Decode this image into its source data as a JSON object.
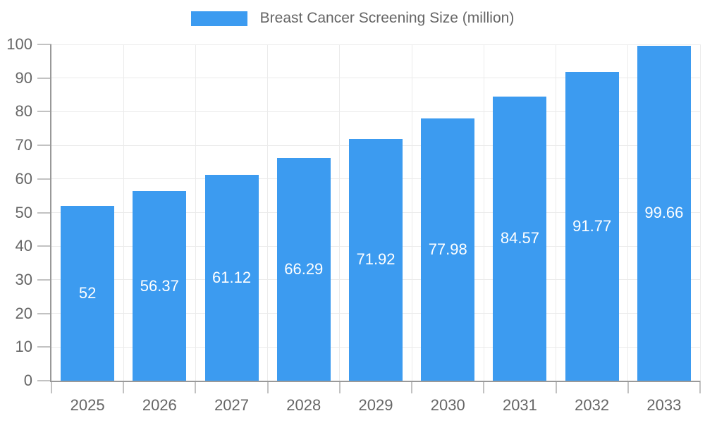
{
  "legend": {
    "label": "Breast Cancer Screening Size (million)"
  },
  "chart_data": {
    "type": "bar",
    "title": "Breast Cancer Screening Size (million)",
    "categories": [
      "2025",
      "2026",
      "2027",
      "2028",
      "2029",
      "2030",
      "2031",
      "2032",
      "2033"
    ],
    "values": [
      52,
      56.37,
      61.12,
      66.29,
      71.92,
      77.98,
      84.57,
      91.77,
      99.66
    ],
    "value_labels": [
      "52",
      "56.37",
      "61.12",
      "66.29",
      "71.92",
      "77.98",
      "84.57",
      "91.77",
      "99.66"
    ],
    "xlabel": "",
    "ylabel": "",
    "ylim": [
      0,
      100
    ],
    "ytick_step": 10,
    "grid": true,
    "legend_position": "top",
    "bar_color": "#3C9BF0",
    "bar_label_color": "#ffffff",
    "axis_color": "#999999",
    "tick_color": "#c2c2c2",
    "grid_color": "#ebebeb",
    "text_color": "#666666"
  }
}
